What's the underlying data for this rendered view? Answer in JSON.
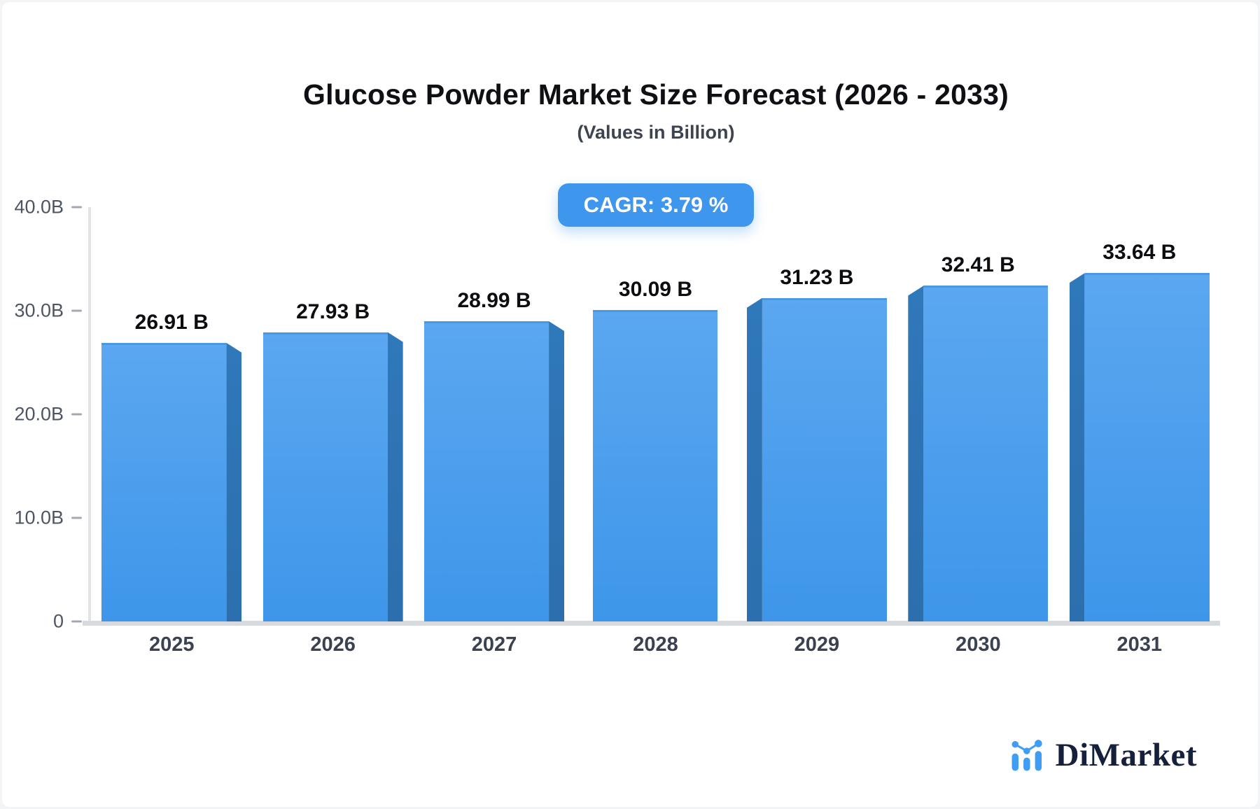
{
  "page": {
    "background": "#f3f4f6",
    "card_background": "#ffffff"
  },
  "header": {
    "title": "Glucose Powder Market Size Forecast (2026 - 2033)",
    "subtitle": "(Values in Billion)"
  },
  "badge": {
    "label": "CAGR: 3.79 %",
    "background": "#3f97ed",
    "text_color": "#ffffff"
  },
  "chart_data": {
    "type": "bar",
    "title": "Glucose Powder Market Size Forecast (2026 - 2033)",
    "subtitle": "(Values in Billion)",
    "categories": [
      "2025",
      "2026",
      "2027",
      "2028",
      "2029",
      "2030",
      "2031"
    ],
    "values": [
      26.91,
      27.93,
      28.99,
      30.09,
      31.23,
      32.41,
      33.64
    ],
    "value_labels": [
      "26.91 B",
      "27.93 B",
      "28.99 B",
      "30.09 B",
      "31.23 B",
      "32.41 B",
      "33.64 B"
    ],
    "unit": "Billion",
    "xlabel": "",
    "ylabel": "",
    "ylim": [
      0,
      40
    ],
    "y_ticks": [
      "40.0B",
      "30.0B",
      "20.0B",
      "10.0B",
      "0"
    ],
    "y_tick_values": [
      40,
      30,
      20,
      10,
      0
    ],
    "grid": false,
    "legend_position": "none",
    "bar_color_top": "#5ba7f0",
    "bar_color_bottom": "#3e96ea",
    "bar_side_color_top": "#2f78ba",
    "bar_side_color_bottom": "#2c6fae",
    "extrude_direction": [
      "right",
      "right",
      "right",
      "none",
      "left",
      "left",
      "left"
    ]
  },
  "logo": {
    "text": "DiMarket",
    "mark": "bar-chart-with-trendline-icon",
    "mark_color": "#3f9df5",
    "text_color": "#16203b"
  }
}
